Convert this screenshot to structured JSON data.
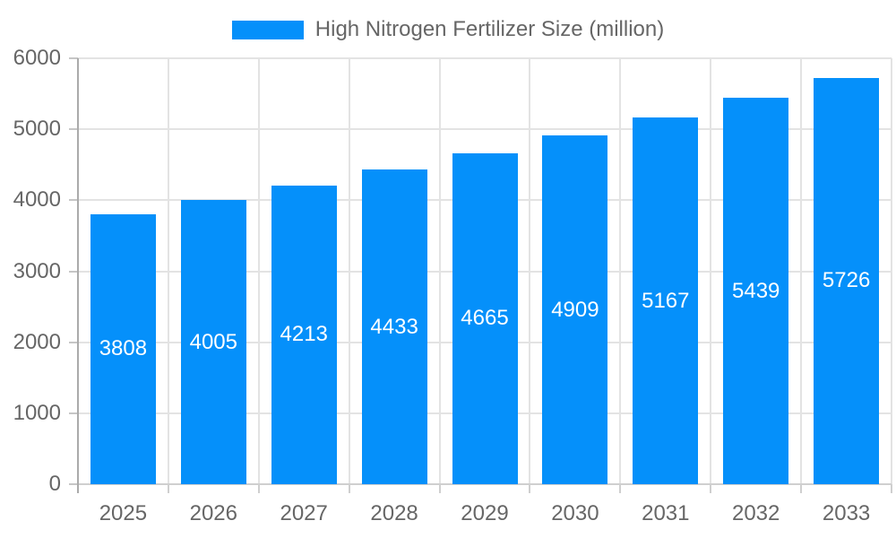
{
  "chart_data": {
    "type": "bar",
    "title": "",
    "legend": "High Nitrogen Fertilizer Size (million)",
    "legend_position": "top",
    "categories": [
      "2025",
      "2026",
      "2027",
      "2028",
      "2029",
      "2030",
      "2031",
      "2032",
      "2033"
    ],
    "series": [
      {
        "name": "High Nitrogen Fertilizer Size (million)",
        "color": "#0590fa",
        "values": [
          3808,
          4005,
          4213,
          4433,
          4665,
          4909,
          5167,
          5439,
          5726
        ]
      }
    ],
    "xlabel": "",
    "ylabel": "",
    "ylim": [
      0,
      6000
    ],
    "ytick_step": 1000,
    "grid": true,
    "data_labels": {
      "color": "#ffffff",
      "position": "center"
    }
  }
}
